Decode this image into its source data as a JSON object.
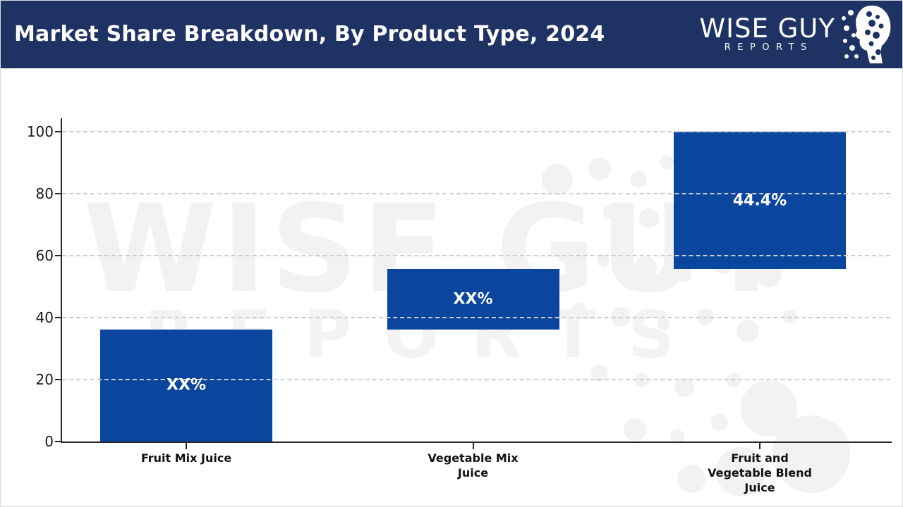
{
  "header": {
    "title": "Market Share Breakdown, By Product Type, 2024",
    "logo": {
      "line1": "WISE GUY",
      "line2": "REPORTS"
    }
  },
  "watermark": {
    "line1": "WISE GUY",
    "line2": "REPORTS"
  },
  "chart_data": {
    "type": "bar",
    "subtype": "floating-waterfall",
    "title": "Market Share Breakdown, By Product Type, 2024",
    "categories": [
      "Fruit Mix Juice",
      "Vegetable Mix\nJuice",
      "Fruit and\nVegetable Blend\nJuice"
    ],
    "bars": [
      {
        "category": "Fruit Mix Juice",
        "start": 0,
        "end": 36.2,
        "value": 36.2,
        "value_label": "XX%"
      },
      {
        "category": "Vegetable Mix Juice",
        "start": 36.2,
        "end": 55.6,
        "value": 19.4,
        "value_label": "XX%"
      },
      {
        "category": "Fruit and Vegetable Blend Juice",
        "start": 55.6,
        "end": 100,
        "value": 44.4,
        "value_label": "44.4%"
      }
    ],
    "xlabel": "",
    "ylabel": "",
    "ylim": [
      0,
      100
    ],
    "yticks": [
      0,
      20,
      40,
      60,
      80,
      100
    ],
    "grid": "horizontal dashed, drawn over bars",
    "legend": "none",
    "bar_color": "#0b469e",
    "value_label_color": "#ffffff"
  },
  "colors": {
    "header_bg": "#1e3264",
    "bar": "#0b469e",
    "grid": "#cdcdcd",
    "axis": "#262626",
    "watermark": "#f2f2f2",
    "page_border": "#dcdcdc"
  }
}
